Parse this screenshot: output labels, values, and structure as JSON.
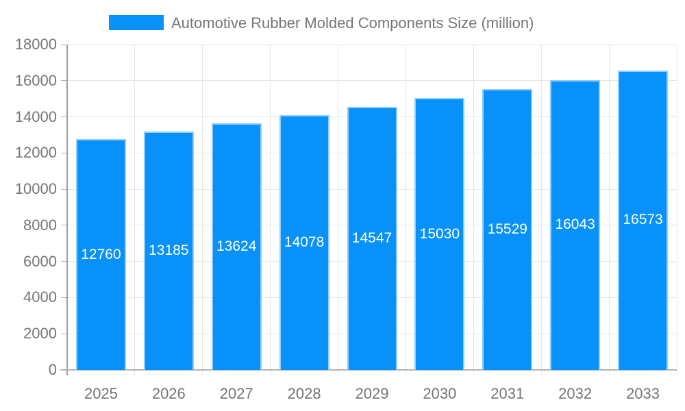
{
  "chart_data": {
    "type": "bar",
    "title": "Automotive Rubber Molded Components Size (million)",
    "categories": [
      "2025",
      "2026",
      "2027",
      "2028",
      "2029",
      "2030",
      "2031",
      "2032",
      "2033"
    ],
    "values": [
      12760,
      13185,
      13624,
      14078,
      14547,
      15030,
      15529,
      16043,
      16573
    ],
    "xlabel": "",
    "ylabel": "",
    "ylim": [
      0,
      18000
    ],
    "yticks": [
      0,
      2000,
      4000,
      6000,
      8000,
      10000,
      12000,
      14000,
      16000,
      18000
    ],
    "grid": true,
    "legend_position": "top",
    "value_labels_inside_bars": true,
    "colors": {
      "bar": "#0891F8",
      "bar_edge_highlight": "#8CC6FB",
      "grid": "#E6E6E6",
      "y_axis": "#9E9E9E",
      "x_axis": "#B3B3B3",
      "tick": "#B3B3B3",
      "axis_text": "#757575",
      "value_label_text": "#FFFFFF",
      "background": "#FFFFFF"
    }
  }
}
